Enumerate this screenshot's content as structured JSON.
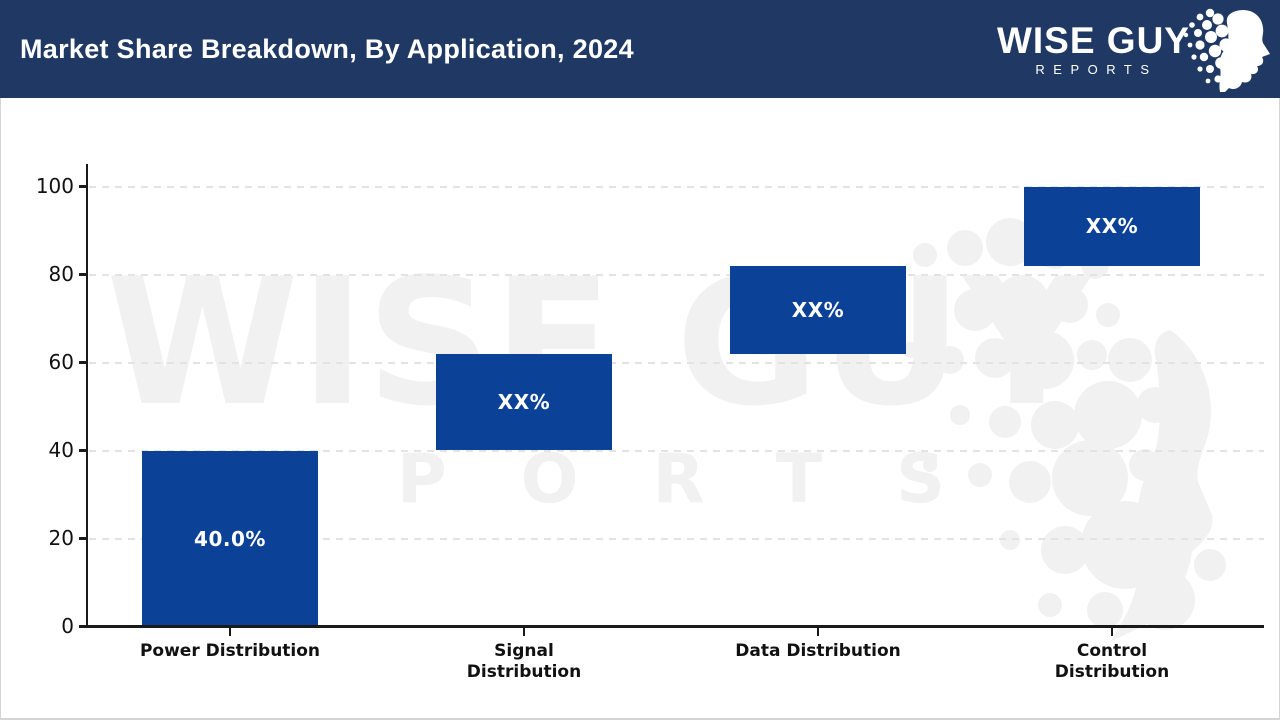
{
  "header": {
    "title": "Market Share Breakdown, By Application, 2024",
    "logo": {
      "wordmark": "WISE GUY",
      "subtext": "REPORTS"
    }
  },
  "watermark": {
    "line1": "WISE GUY",
    "line2": "REPORTS"
  },
  "chart_data": {
    "type": "bar",
    "variant": "waterfall",
    "title": "Market Share Breakdown, By Application, 2024",
    "categories": [
      "Power Distribution",
      "Signal Distribution",
      "Data Distribution",
      "Control Distribution"
    ],
    "category_label_lines": [
      [
        "Power Distribution"
      ],
      [
        "Signal",
        "Distribution"
      ],
      [
        "Data Distribution"
      ],
      [
        "Control",
        "Distribution"
      ]
    ],
    "segments": [
      {
        "category": "Power Distribution",
        "start": 0,
        "end": 40,
        "value": 40,
        "label": "40.0%"
      },
      {
        "category": "Signal Distribution",
        "start": 40,
        "end": 62,
        "value": 22,
        "label": "XX%"
      },
      {
        "category": "Data Distribution",
        "start": 62,
        "end": 82,
        "value": 20,
        "label": "XX%"
      },
      {
        "category": "Control Distribution",
        "start": 82,
        "end": 100,
        "value": 18,
        "label": "XX%"
      }
    ],
    "ylim": [
      0,
      100
    ],
    "yticks": [
      0,
      20,
      40,
      60,
      80,
      100
    ],
    "xlabel": "",
    "ylabel": "",
    "grid": "horizontal-dashed",
    "legend": "none",
    "bar_color": "#0b4196",
    "bar_label_color": "#ffffff"
  },
  "colors": {
    "header_bg": "#1f3864",
    "accent_blue": "#0b4196",
    "axis": "#1a1a1a",
    "grid": "#e3e3e3",
    "watermark": "#f1f1f2",
    "page_border": "#d4d4d4"
  }
}
